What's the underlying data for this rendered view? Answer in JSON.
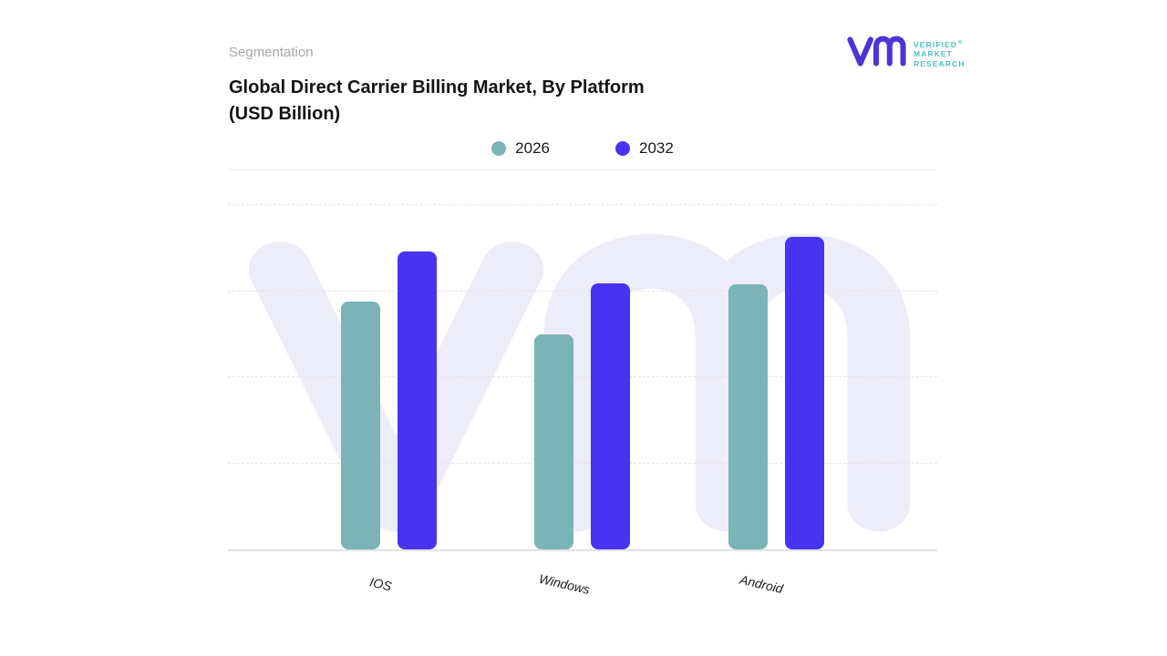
{
  "header": {
    "section_label": "Segmentation",
    "title_line1": "Global Direct Carrier Billing Market, By Platform",
    "title_line2": "(USD Billion)"
  },
  "logo": {
    "line1": "VERIFIED",
    "line2": "MARKET",
    "line3": "RESEARCH",
    "registered_mark": "®",
    "monogram_color": "#4E34D6",
    "text_color": "#4BC0C4"
  },
  "watermark": {
    "color": "#EDECFA"
  },
  "chart_data": {
    "type": "bar",
    "title": "Global Direct Carrier Billing Market, By Platform (USD Billion)",
    "units": "USD Billion",
    "categories": [
      "IOS",
      "Windows",
      "Android"
    ],
    "series": [
      {
        "name": "2026",
        "color": "#7BB4B6",
        "values": [
          28.8,
          25.0,
          30.8
        ]
      },
      {
        "name": "2032",
        "color": "#4634F0",
        "values": [
          34.6,
          30.9,
          36.3
        ]
      }
    ],
    "xlabel": "",
    "ylabel": "",
    "ylim": [
      0,
      40
    ],
    "y_axis_labels_visible": false,
    "grid": "horizontal-dashed",
    "legend_position": "top-center"
  }
}
